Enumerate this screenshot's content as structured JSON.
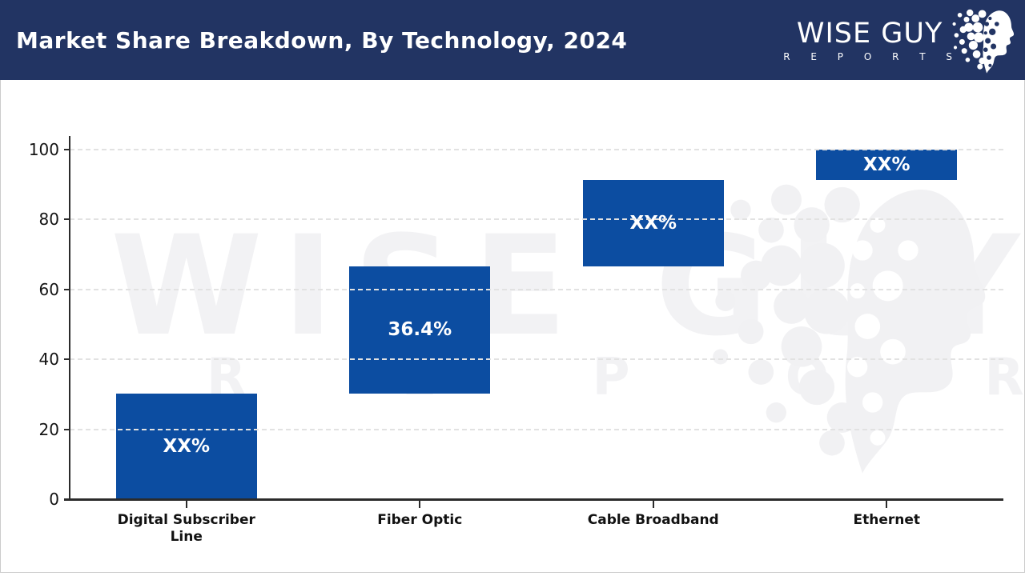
{
  "header": {
    "title": "Market Share Breakdown, By Technology, 2024",
    "logo": {
      "name": "WISE GUY",
      "tagline": "R E P O R T S"
    }
  },
  "watermark": {
    "line1": "WISE GUY",
    "line2": "R E P O R T S"
  },
  "chart_data": {
    "type": "bar",
    "variant": "waterfall",
    "title": "Market Share Breakdown, By Technology, 2024",
    "categories": [
      "Digital Subscriber Line",
      "Fiber Optic",
      "Cable Broadband",
      "Ethernet"
    ],
    "bar_labels": [
      "XX%",
      "36.4%",
      "XX%",
      "XX%"
    ],
    "segment_start": [
      0,
      30.3,
      66.7,
      91.2
    ],
    "segment_end": [
      30.3,
      66.7,
      91.2,
      100
    ],
    "segment_size_pct": [
      30.3,
      36.4,
      24.5,
      8.8
    ],
    "xlabel": "",
    "ylabel": "",
    "ylim": [
      0,
      100
    ],
    "yticks": [
      0,
      20,
      40,
      60,
      80,
      100
    ],
    "grid": "horizontal-dashed",
    "legend": "none",
    "colors": {
      "bar": "#0c4da1",
      "header_bg": "#223463",
      "grid": "#e2e2e2",
      "axis": "#2b2b2b",
      "watermark": "#f2f2f4"
    }
  }
}
